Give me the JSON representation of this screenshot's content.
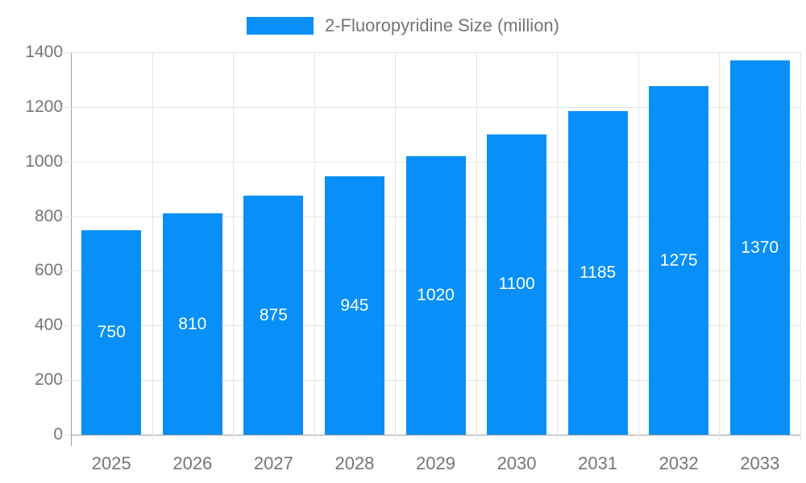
{
  "legend": {
    "label": "2-Fluoropyridine Size (million)"
  },
  "chart_data": {
    "type": "bar",
    "title": "",
    "categories": [
      "2025",
      "2026",
      "2027",
      "2028",
      "2029",
      "2030",
      "2031",
      "2032",
      "2033"
    ],
    "series": [
      {
        "name": "2-Fluoropyridine Size (million)",
        "values": [
          750,
          810,
          875,
          945,
          1020,
          1100,
          1185,
          1275,
          1370
        ]
      }
    ],
    "xlabel": "",
    "ylabel": "",
    "ylim": [
      0,
      1400
    ],
    "yticks": [
      0,
      200,
      400,
      600,
      800,
      1000,
      1200,
      1400
    ],
    "grid": true,
    "legend_position": "top-center",
    "value_label_position": "inside-middle"
  },
  "colors": {
    "bar": "#0890f8",
    "axis_line": "#9e9e9e",
    "gridline": "#e3e3e3",
    "tick_text": "#757575",
    "legend_text": "#757575",
    "value_label_text": "#ffffff",
    "background": "#ffffff"
  }
}
